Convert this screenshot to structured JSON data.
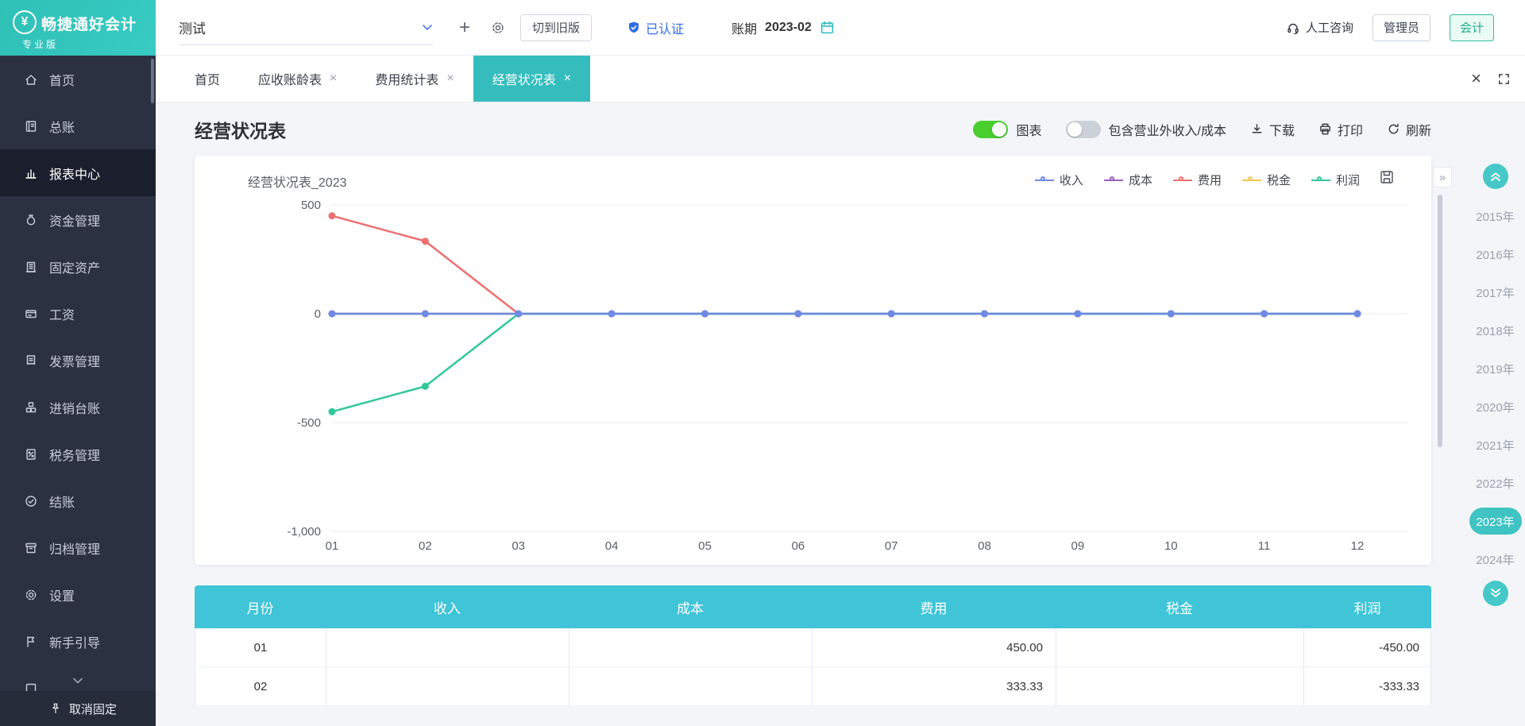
{
  "brand": {
    "title": "畅捷通好会计",
    "subtitle": "专业版"
  },
  "sidebar": {
    "items": [
      {
        "label": "首页"
      },
      {
        "label": "总账"
      },
      {
        "label": "报表中心",
        "active": true
      },
      {
        "label": "资金管理"
      },
      {
        "label": "固定资产"
      },
      {
        "label": "工资"
      },
      {
        "label": "发票管理"
      },
      {
        "label": "进销台账"
      },
      {
        "label": "税务管理"
      },
      {
        "label": "结账"
      },
      {
        "label": "归档管理"
      },
      {
        "label": "设置"
      },
      {
        "label": "新手引导"
      }
    ],
    "unpin_label": "取消固定"
  },
  "topbar": {
    "account": "测试",
    "switch_old": "切到旧版",
    "certified": "已认证",
    "period_label": "账期",
    "period_value": "2023-02",
    "support": "人工咨询",
    "admin": "管理员",
    "role": "会计"
  },
  "tabs": {
    "items": [
      {
        "label": "首页",
        "closable": false,
        "active": false
      },
      {
        "label": "应收账龄表",
        "closable": true,
        "active": false
      },
      {
        "label": "费用统计表",
        "closable": true,
        "active": false
      },
      {
        "label": "经营状况表",
        "closable": true,
        "active": true
      }
    ]
  },
  "page": {
    "title": "经营状况表",
    "chart_toggle_label": "图表",
    "chart_toggle_on": true,
    "include_toggle_label": "包含营业外收入/成本",
    "include_toggle_on": false,
    "download": "下载",
    "print": "打印",
    "refresh": "刷新"
  },
  "chart_data": {
    "type": "line",
    "title": "经营状况表_2023",
    "categories": [
      "01",
      "02",
      "03",
      "04",
      "05",
      "06",
      "07",
      "08",
      "09",
      "10",
      "11",
      "12"
    ],
    "series": [
      {
        "name": "收入",
        "color": "#6e8ae6",
        "z": 5,
        "values": [
          0,
          0,
          0,
          0,
          0,
          0,
          0,
          0,
          0,
          0,
          0,
          0
        ]
      },
      {
        "name": "成本",
        "color": "#9a60b4",
        "z": 1,
        "values": [
          0,
          0,
          0,
          0,
          0,
          0,
          0,
          0,
          0,
          0,
          0,
          0
        ]
      },
      {
        "name": "费用",
        "color": "#ee7070",
        "z": 3,
        "values": [
          450,
          333.33,
          0,
          0,
          0,
          0,
          0,
          0,
          0,
          0,
          0,
          0
        ]
      },
      {
        "name": "税金",
        "color": "#f3c653",
        "z": 2,
        "values": [
          0,
          0,
          0,
          0,
          0,
          0,
          0,
          0,
          0,
          0,
          0,
          0
        ]
      },
      {
        "name": "利润",
        "color": "#32c79b",
        "z": 4,
        "values": [
          -450,
          -333.33,
          0,
          0,
          0,
          0,
          0,
          0,
          0,
          0,
          0,
          0
        ]
      }
    ],
    "yticks": [
      {
        "value": 500,
        "label": "500"
      },
      {
        "value": 0,
        "label": "0"
      },
      {
        "value": -500,
        "label": "-500"
      },
      {
        "value": -1000,
        "label": "-1,000"
      }
    ],
    "ylim": [
      -1000,
      500
    ],
    "xlabel": "",
    "ylabel": "",
    "grid": true,
    "legend_position": "top-right"
  },
  "year_panel": {
    "years": [
      "2015年",
      "2016年",
      "2017年",
      "2018年",
      "2019年",
      "2020年",
      "2021年",
      "2022年",
      "2023年",
      "2024年"
    ],
    "selected": "2023年"
  },
  "table": {
    "headers": [
      "月份",
      "收入",
      "成本",
      "费用",
      "税金",
      "利润"
    ],
    "rows": [
      [
        "01",
        "",
        "",
        "450.00",
        "",
        "-450.00"
      ],
      [
        "02",
        "",
        "",
        "333.33",
        "",
        "-333.33"
      ]
    ]
  }
}
